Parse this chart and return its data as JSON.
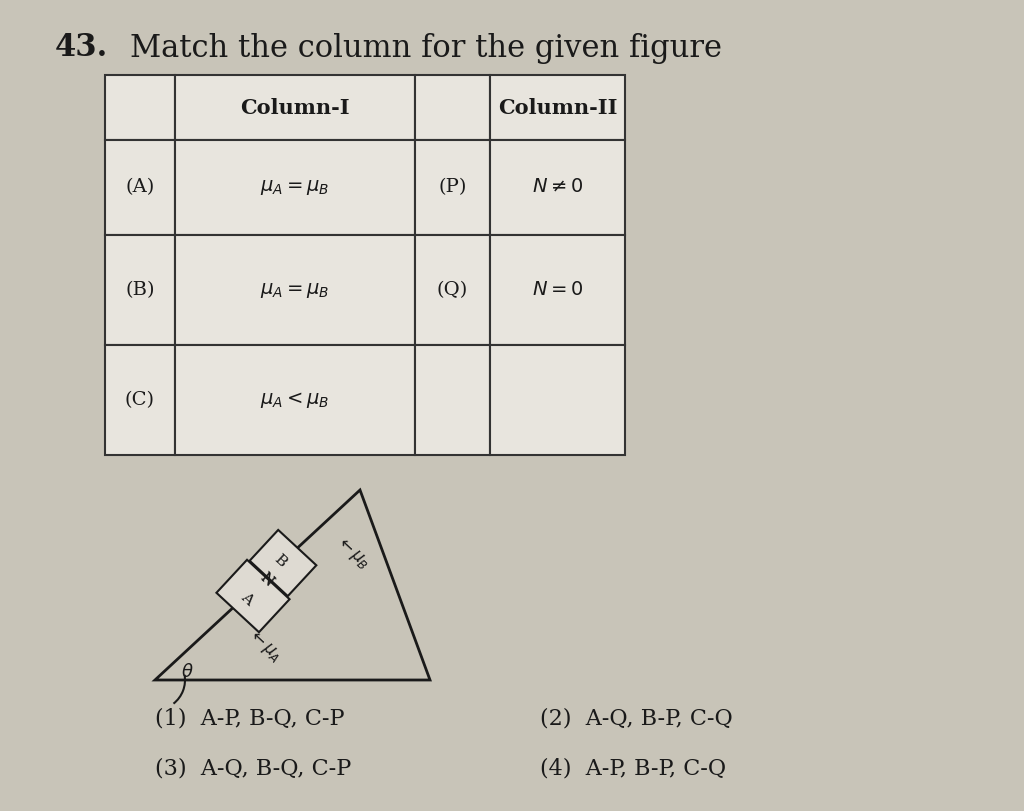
{
  "title_number": "43.",
  "title_text": "Match the column for the given figure",
  "background_color": "#c8c4b8",
  "table": {
    "col1_header": "Column-I",
    "col2_header": "Column-II",
    "rows": [
      {
        "label": "(A)",
        "col1": "$\\mu_A = \\mu_B$",
        "mid_label": "(P)",
        "col2": "$N \\neq 0$"
      },
      {
        "label": "(B)",
        "col1": "$\\mu_A = \\mu_B$",
        "mid_label": "(Q)",
        "col2": "$N = 0$"
      },
      {
        "label": "(C)",
        "col1": "$\\mu_A < \\mu_B$",
        "mid_label": "",
        "col2": ""
      }
    ]
  },
  "options": [
    {
      "num": "(1)",
      "text": "A-P, B-Q, C-P"
    },
    {
      "num": "(2)",
      "text": "A-Q, B-P, C-Q"
    },
    {
      "num": "(3)",
      "text": "A-Q, B-Q, C-P"
    },
    {
      "num": "(4)",
      "text": "A-P, B-P, C-Q"
    }
  ],
  "fig_bg": "#c8c4b8"
}
